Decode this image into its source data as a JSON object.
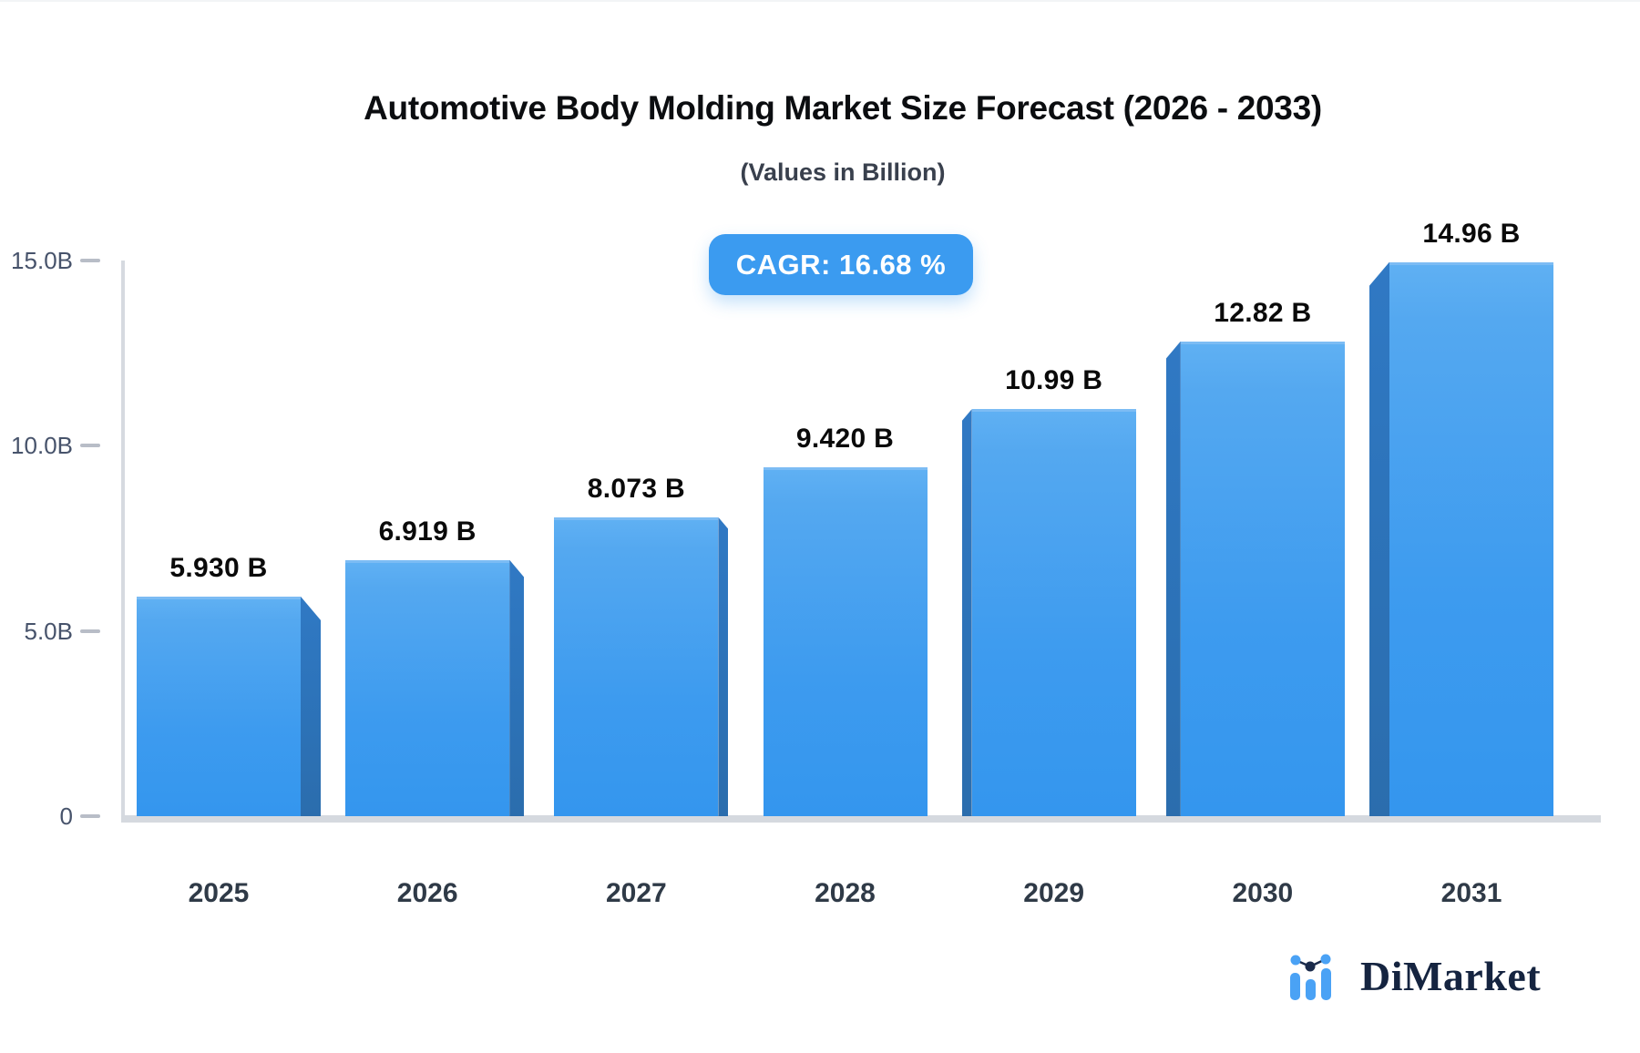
{
  "header": {
    "title": "Automotive Body Molding Market Size Forecast (2026 - 2033)",
    "subtitle": "(Values in Billion)",
    "cagr_label": "CAGR: 16.68 %"
  },
  "chart_data": {
    "type": "bar",
    "title": "Automotive Body Molding Market Size Forecast (2026 - 2033)",
    "subtitle": "(Values in Billion)",
    "categories": [
      "2025",
      "2026",
      "2027",
      "2028",
      "2029",
      "2030",
      "2031"
    ],
    "values": [
      5.93,
      6.919,
      8.073,
      9.42,
      10.99,
      12.82,
      14.96
    ],
    "value_labels": [
      "5.930 B",
      "6.919 B",
      "8.073 B",
      "9.420 B",
      "10.99 B",
      "12.82 B",
      "14.96 B"
    ],
    "annotation": "CAGR: 16.68 %",
    "xlabel": "",
    "ylabel": "",
    "ylim": [
      0,
      15
    ],
    "yticks": [
      {
        "value": 0,
        "label": "0"
      },
      {
        "value": 5,
        "label": "5.0B"
      },
      {
        "value": 10,
        "label": "10.0B"
      },
      {
        "value": 15,
        "label": "15.0B"
      }
    ],
    "grid": false,
    "legend_position": "none",
    "bar_style": "3d-extruded",
    "colors": {
      "bar_face_top": "#5fb0f3",
      "bar_face_bottom": "#3496ee",
      "bar_side": "#2d74bb",
      "badge_bg": "#3b9bf0",
      "badge_text": "#ffffff",
      "axis_line": "#d6dae0",
      "tick_dash": "#b8bdc7",
      "tick_label": "#47536b",
      "year_label": "#2f3a47",
      "value_label": "#0a0a0a"
    }
  },
  "branding": {
    "logo_text": "DiMarket",
    "logo_icon": "bar-chart-trend-icon",
    "logo_text_color": "#152440",
    "logo_icon_color": "#4aa2f5",
    "logo_accent_color": "#1b2b4b"
  }
}
